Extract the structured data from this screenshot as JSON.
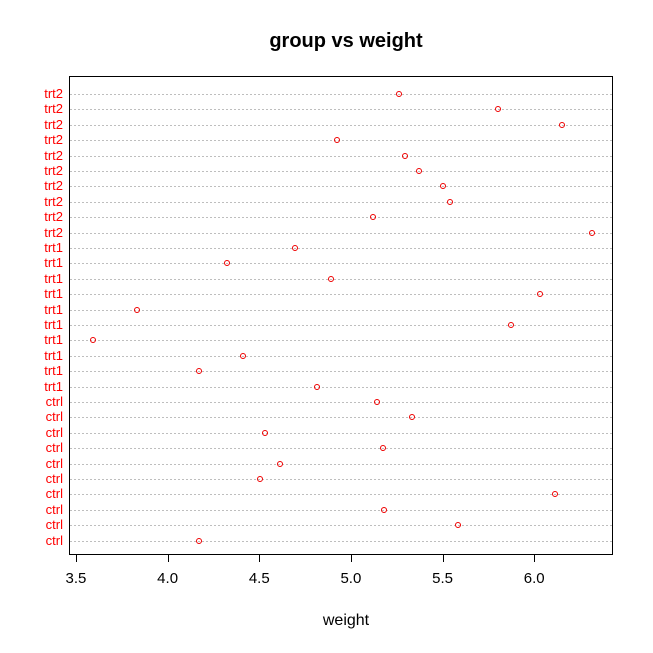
{
  "chart_data": {
    "type": "scatter",
    "subtype": "dotchart",
    "title": "group vs weight",
    "xlabel": "weight",
    "ylabel": "",
    "grid": "horizontal dashed line per row",
    "legend": "none",
    "xlim": [
      3.462,
      6.419
    ],
    "x_axis": {
      "ticks": [
        {
          "value": 3.5,
          "label": "3.5"
        },
        {
          "value": 4.0,
          "label": "4.0"
        },
        {
          "value": 4.5,
          "label": "4.5"
        },
        {
          "value": 5.0,
          "label": "5.0"
        },
        {
          "value": 5.5,
          "label": "5.5"
        },
        {
          "value": 6.0,
          "label": "6.0"
        }
      ]
    },
    "row_order_note": "rows listed bottom-to-top as plotted",
    "rows": [
      {
        "label": "ctrl",
        "value": 4.17
      },
      {
        "label": "ctrl",
        "value": 5.58
      },
      {
        "label": "ctrl",
        "value": 5.18
      },
      {
        "label": "ctrl",
        "value": 6.11
      },
      {
        "label": "ctrl",
        "value": 4.5
      },
      {
        "label": "ctrl",
        "value": 4.61
      },
      {
        "label": "ctrl",
        "value": 5.17
      },
      {
        "label": "ctrl",
        "value": 4.53
      },
      {
        "label": "ctrl",
        "value": 5.33
      },
      {
        "label": "ctrl",
        "value": 5.14
      },
      {
        "label": "trt1",
        "value": 4.81
      },
      {
        "label": "trt1",
        "value": 4.17
      },
      {
        "label": "trt1",
        "value": 4.41
      },
      {
        "label": "trt1",
        "value": 3.59
      },
      {
        "label": "trt1",
        "value": 5.87
      },
      {
        "label": "trt1",
        "value": 3.83
      },
      {
        "label": "trt1",
        "value": 6.03
      },
      {
        "label": "trt1",
        "value": 4.89
      },
      {
        "label": "trt1",
        "value": 4.32
      },
      {
        "label": "trt1",
        "value": 4.69
      },
      {
        "label": "trt2",
        "value": 6.31
      },
      {
        "label": "trt2",
        "value": 5.12
      },
      {
        "label": "trt2",
        "value": 5.54
      },
      {
        "label": "trt2",
        "value": 5.5
      },
      {
        "label": "trt2",
        "value": 5.37
      },
      {
        "label": "trt2",
        "value": 5.29
      },
      {
        "label": "trt2",
        "value": 4.92
      },
      {
        "label": "trt2",
        "value": 6.15
      },
      {
        "label": "trt2",
        "value": 5.8
      },
      {
        "label": "trt2",
        "value": 5.26
      }
    ]
  },
  "colors": {
    "point": "#ee0000",
    "row_label": "#ff0000",
    "grid": "#bebebe",
    "axis": "#000000",
    "background": "#ffffff"
  }
}
